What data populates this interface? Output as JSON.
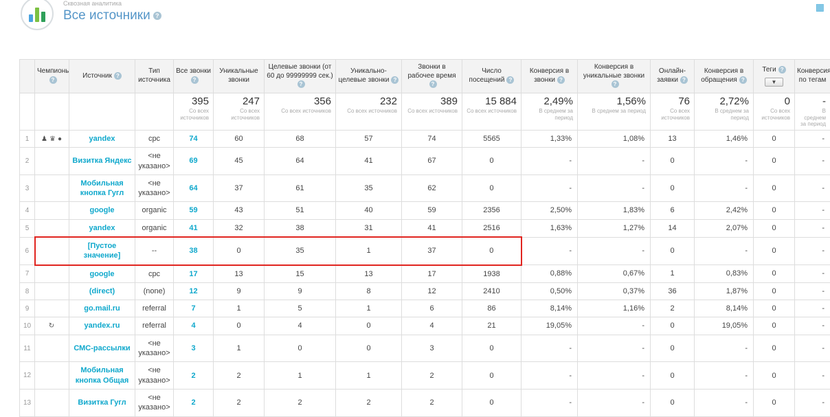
{
  "header": {
    "breadcrumb": "Сквозная аналитика",
    "title": "Все источники"
  },
  "icons": {
    "logo": "bar-chart-logo",
    "help": "question-circle",
    "settings": "grid",
    "tags_filter_caret": "caret-down",
    "champion_glyphs": [
      "pawn",
      "crown",
      "medal"
    ],
    "refresh": "refresh-arrow"
  },
  "colors": {
    "link": "#0fa8cc",
    "title": "#5596c8",
    "highlight_border": "#e0241f",
    "header_bg": "#f3f3f3"
  },
  "table": {
    "columns": [
      {
        "label": ""
      },
      {
        "label": "Чемпионы"
      },
      {
        "label": "Источник"
      },
      {
        "label": "Тип источника"
      },
      {
        "label": "Все звонки"
      },
      {
        "label": "Уникальные звонки"
      },
      {
        "label": "Целевые звонки (от 60 до 99999999 сек.)"
      },
      {
        "label": "Уникально-целевые звонки"
      },
      {
        "label": "Звонки в рабочее время"
      },
      {
        "label": "Число посещений"
      },
      {
        "label": "Конверсия в звонки"
      },
      {
        "label": "Конверсия в уникальные звонки"
      },
      {
        "label": "Онлайн-заявки"
      },
      {
        "label": "Конверсия в обращения"
      },
      {
        "label": "Теги"
      },
      {
        "label": "Конверсия по тегам"
      }
    ],
    "summary": [
      {
        "value": "395",
        "caption": "Со всех источников"
      },
      {
        "value": "247",
        "caption": "Со всех источников"
      },
      {
        "value": "356",
        "caption": "Со всех источников"
      },
      {
        "value": "232",
        "caption": "Со всех источников"
      },
      {
        "value": "389",
        "caption": "Со всех источников"
      },
      {
        "value": "15 884",
        "caption": "Со всех источников"
      },
      {
        "value": "2,49%",
        "caption": "В среднем за период"
      },
      {
        "value": "1,56%",
        "caption": "В среднем за период"
      },
      {
        "value": "76",
        "caption": "Со всех источников"
      },
      {
        "value": "2,72%",
        "caption": "В среднем за период"
      },
      {
        "value": "0",
        "caption": "Со всех источников"
      },
      {
        "value": "-",
        "caption": "В среднем за период"
      }
    ],
    "rows": [
      {
        "num": "1",
        "champions": [
          "pawn",
          "crown",
          "medal"
        ],
        "source": "yandex",
        "type": "cpc",
        "calls": "74",
        "unique": "60",
        "target": "68",
        "unique_target": "57",
        "worktime": "74",
        "visits": "5565",
        "conv_calls": "1,33%",
        "conv_unique": "1,08%",
        "online": "13",
        "conv_req": "1,46%",
        "tags": "0",
        "conv_tags": "-",
        "highlighted": false
      },
      {
        "num": "2",
        "champions": [],
        "source": "Визитка Яндекс",
        "type": "<не указано>",
        "calls": "69",
        "unique": "45",
        "target": "64",
        "unique_target": "41",
        "worktime": "67",
        "visits": "0",
        "conv_calls": "-",
        "conv_unique": "-",
        "online": "0",
        "conv_req": "-",
        "tags": "0",
        "conv_tags": "-",
        "highlighted": false
      },
      {
        "num": "3",
        "champions": [],
        "source": "Мобильная кнопка Гугл",
        "type": "<не указано>",
        "calls": "64",
        "unique": "37",
        "target": "61",
        "unique_target": "35",
        "worktime": "62",
        "visits": "0",
        "conv_calls": "-",
        "conv_unique": "-",
        "online": "0",
        "conv_req": "-",
        "tags": "0",
        "conv_tags": "-",
        "highlighted": false
      },
      {
        "num": "4",
        "champions": [],
        "source": "google",
        "type": "organic",
        "calls": "59",
        "unique": "43",
        "target": "51",
        "unique_target": "40",
        "worktime": "59",
        "visits": "2356",
        "conv_calls": "2,50%",
        "conv_unique": "1,83%",
        "online": "6",
        "conv_req": "2,42%",
        "tags": "0",
        "conv_tags": "-",
        "highlighted": false
      },
      {
        "num": "5",
        "champions": [],
        "source": "yandex",
        "type": "organic",
        "calls": "41",
        "unique": "32",
        "target": "38",
        "unique_target": "31",
        "worktime": "41",
        "visits": "2516",
        "conv_calls": "1,63%",
        "conv_unique": "1,27%",
        "online": "14",
        "conv_req": "2,07%",
        "tags": "0",
        "conv_tags": "-",
        "highlighted": false
      },
      {
        "num": "6",
        "champions": [],
        "source": "[Пустое значение]",
        "type": "--",
        "calls": "38",
        "unique": "0",
        "target": "35",
        "unique_target": "1",
        "worktime": "37",
        "visits": "0",
        "conv_calls": "-",
        "conv_unique": "-",
        "online": "0",
        "conv_req": "-",
        "tags": "0",
        "conv_tags": "-",
        "highlighted": true
      },
      {
        "num": "7",
        "champions": [],
        "source": "google",
        "type": "cpc",
        "calls": "17",
        "unique": "13",
        "target": "15",
        "unique_target": "13",
        "worktime": "17",
        "visits": "1938",
        "conv_calls": "0,88%",
        "conv_unique": "0,67%",
        "online": "1",
        "conv_req": "0,83%",
        "tags": "0",
        "conv_tags": "-",
        "highlighted": false
      },
      {
        "num": "8",
        "champions": [],
        "source": "(direct)",
        "type": "(none)",
        "calls": "12",
        "unique": "9",
        "target": "9",
        "unique_target": "8",
        "worktime": "12",
        "visits": "2410",
        "conv_calls": "0,50%",
        "conv_unique": "0,37%",
        "online": "36",
        "conv_req": "1,87%",
        "tags": "0",
        "conv_tags": "-",
        "highlighted": false
      },
      {
        "num": "9",
        "champions": [],
        "source": "go.mail.ru",
        "type": "referral",
        "calls": "7",
        "unique": "1",
        "target": "5",
        "unique_target": "1",
        "worktime": "6",
        "visits": "86",
        "conv_calls": "8,14%",
        "conv_unique": "1,16%",
        "online": "2",
        "conv_req": "8,14%",
        "tags": "0",
        "conv_tags": "-",
        "highlighted": false
      },
      {
        "num": "10",
        "champions": [
          "refresh"
        ],
        "source": "yandex.ru",
        "type": "referral",
        "calls": "4",
        "unique": "0",
        "target": "4",
        "unique_target": "0",
        "worktime": "4",
        "visits": "21",
        "conv_calls": "19,05%",
        "conv_unique": "-",
        "online": "0",
        "conv_req": "19,05%",
        "tags": "0",
        "conv_tags": "-",
        "highlighted": false
      },
      {
        "num": "11",
        "champions": [],
        "source": "СМС-рассылки",
        "type": "<не указано>",
        "calls": "3",
        "unique": "1",
        "target": "0",
        "unique_target": "0",
        "worktime": "3",
        "visits": "0",
        "conv_calls": "-",
        "conv_unique": "-",
        "online": "0",
        "conv_req": "-",
        "tags": "0",
        "conv_tags": "-",
        "highlighted": false
      },
      {
        "num": "12",
        "champions": [],
        "source": "Мобильная кнопка Общая",
        "type": "<не указано>",
        "calls": "2",
        "unique": "2",
        "target": "1",
        "unique_target": "1",
        "worktime": "2",
        "visits": "0",
        "conv_calls": "-",
        "conv_unique": "-",
        "online": "0",
        "conv_req": "-",
        "tags": "0",
        "conv_tags": "-",
        "highlighted": false
      },
      {
        "num": "13",
        "champions": [],
        "source": "Визитка Гугл",
        "type": "<не указано>",
        "calls": "2",
        "unique": "2",
        "target": "2",
        "unique_target": "2",
        "worktime": "2",
        "visits": "0",
        "conv_calls": "-",
        "conv_unique": "-",
        "online": "0",
        "conv_req": "-",
        "tags": "0",
        "conv_tags": "-",
        "highlighted": false
      }
    ]
  }
}
